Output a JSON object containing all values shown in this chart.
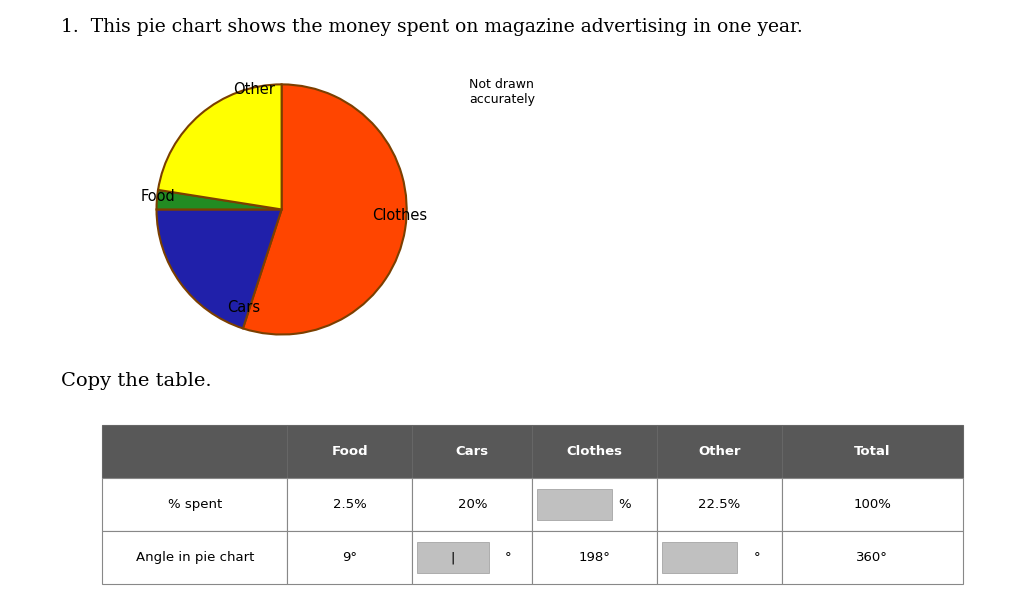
{
  "title": "1.  This pie chart shows the money spent on magazine advertising in one year.",
  "pie_labels": [
    "Clothes",
    "Cars",
    "Food",
    "Other"
  ],
  "pie_angles": [
    198,
    72,
    9,
    81
  ],
  "pie_colors": [
    "#FF4500",
    "#2020AA",
    "#228B22",
    "#FFFF00"
  ],
  "not_drawn_text": "Not drawn\naccurately",
  "copy_table_text": "Copy the table.",
  "table_header": [
    "",
    "Food",
    "Cars",
    "Clothes",
    "Other",
    "Total"
  ],
  "table_row1_label": "% spent",
  "table_row1_values": [
    "2.5%",
    "20%",
    "GRAY",
    "22.5%",
    "100%"
  ],
  "table_row2_label": "Angle in pie chart",
  "table_row2_values": [
    "9°",
    "GRAY",
    "198°",
    "GRAY",
    "360°"
  ],
  "header_bg": "#585858",
  "header_fg": "#FFFFFF",
  "row_bg": "#FFFFFF",
  "gray_cell_bg": "#C0C0C0",
  "border_color": "#888888",
  "background_color": "#FFFFFF",
  "pie_border_color": "#7B3F00"
}
